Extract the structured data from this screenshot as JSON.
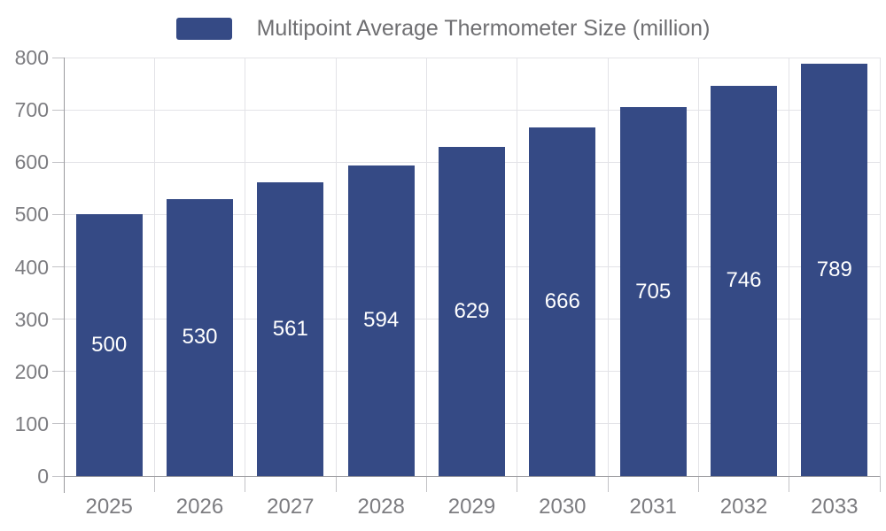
{
  "chart_data": {
    "type": "bar",
    "legend_label": "Multipoint Average Thermometer Size (million)",
    "categories": [
      "2025",
      "2026",
      "2027",
      "2028",
      "2029",
      "2030",
      "2031",
      "2032",
      "2033"
    ],
    "values": [
      500,
      530,
      561,
      594,
      629,
      666,
      705,
      746,
      789
    ],
    "yticks": [
      0,
      100,
      200,
      300,
      400,
      500,
      600,
      700,
      800
    ],
    "ylim": [
      0,
      800
    ],
    "grid": true,
    "legend_position": "top-center",
    "value_labels_position": "inside-center",
    "colors": {
      "bar": "#354a85",
      "grid": "#e3e3e7",
      "axis": "#9a9a9e",
      "tick": "#c2c2c6",
      "tick_text": "#7c7c80",
      "legend_text": "#6f6f72",
      "value_label": "#ffffff",
      "background": "#ffffff"
    }
  }
}
